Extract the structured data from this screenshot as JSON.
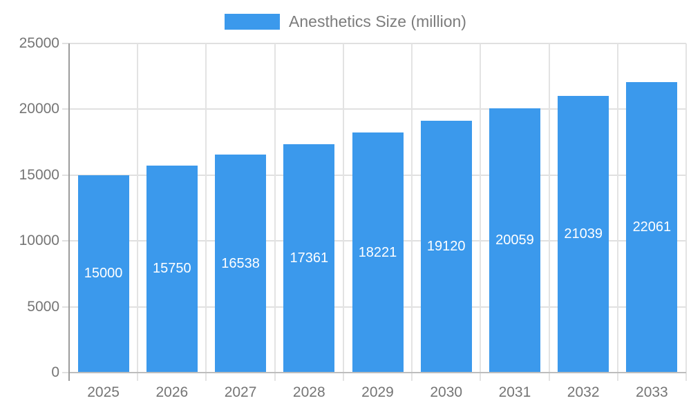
{
  "chart_data": {
    "type": "bar",
    "title": "",
    "xlabel": "",
    "ylabel": "",
    "legend_position": "top-center",
    "categories": [
      "2025",
      "2026",
      "2027",
      "2028",
      "2029",
      "2030",
      "2031",
      "2032",
      "2033"
    ],
    "series": [
      {
        "name": "Anesthetics Size (million)",
        "values": [
          15000,
          15750,
          16538,
          17361,
          18221,
          19120,
          20059,
          21039,
          22061
        ]
      }
    ],
    "value_labels": "inside bars, vertically centered, white",
    "ylim": [
      0,
      25000
    ],
    "yticks": [
      0,
      5000,
      10000,
      15000,
      20000,
      25000
    ],
    "grid": {
      "horizontal": true,
      "vertical_category_boundaries": true
    },
    "colors": {
      "bar": "#3B99EC",
      "grid": "#E0E0E0",
      "category_boundary": "#E3E3E3",
      "baseline": "#BDBDBD",
      "y_axis_line": "#9C9C9C",
      "axis_text": "#757575",
      "legend_text": "#7C7C7C",
      "value_label": "#FFFFFF",
      "background": "#FFFFFF"
    }
  }
}
